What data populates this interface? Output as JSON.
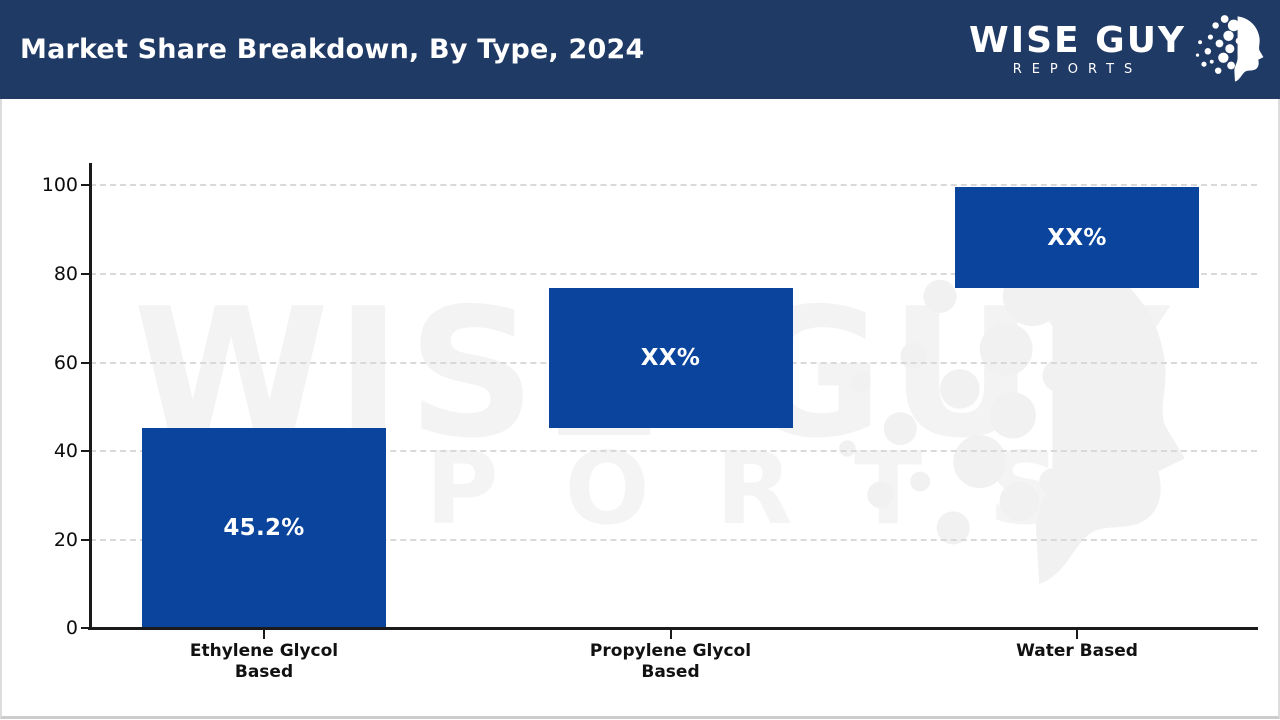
{
  "header": {
    "title": "Market Share Breakdown, By Type, 2024",
    "logo": {
      "line1": "WISE GUY",
      "line2": "REPORTS"
    },
    "background_color": "#203a66",
    "text_color": "#ffffff"
  },
  "watermark": {
    "line1": "WISE GUY",
    "line2": "REPORTS"
  },
  "chart_data": {
    "type": "bar",
    "subtype": "waterfall",
    "title": "Market Share Breakdown, By Type, 2024",
    "categories": [
      [
        "Ethylene Glycol",
        "Based"
      ],
      [
        "Propylene Glycol",
        "Based"
      ],
      [
        "Water Based"
      ]
    ],
    "bars": [
      {
        "category": "Ethylene Glycol Based",
        "start": 0,
        "end": 45.2,
        "segment": 45.2,
        "value_label": "45.2%"
      },
      {
        "category": "Propylene Glycol Based",
        "start": 45.2,
        "end": 76.8,
        "segment": 31.6,
        "value_label": "XX%"
      },
      {
        "category": "Water Based",
        "start": 76.8,
        "end": 99.6,
        "segment": 22.8,
        "value_label": "XX%"
      }
    ],
    "ylim": [
      0,
      100
    ],
    "yticks": [
      0,
      20,
      40,
      60,
      80,
      100
    ],
    "xlabel": "",
    "ylabel": "",
    "legend": null,
    "grid": {
      "horizontal": true,
      "style": "dashed",
      "color": "#d9d9d9"
    },
    "bar_color": "#0a449c",
    "value_label_color": "#ffffff",
    "axis_color": "#1a1a1a"
  }
}
